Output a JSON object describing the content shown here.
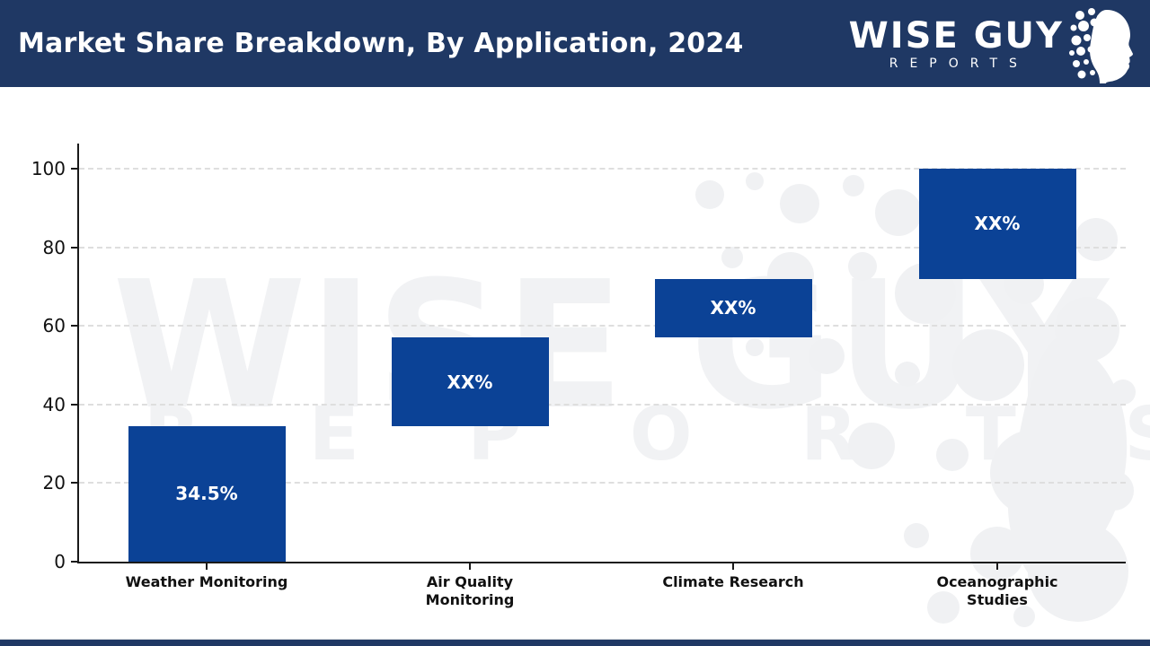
{
  "header": {
    "title": "Market Share Breakdown, By Application, 2024",
    "background_color": "#1f3864",
    "logo": {
      "line1": "WISE GUY",
      "line2": "REPORTS"
    }
  },
  "watermark": {
    "line1": "WISE GUY",
    "line2": "R E P O R T S"
  },
  "chart_data": {
    "type": "bar",
    "subtype": "floating-segment-breakdown",
    "title": "Market Share Breakdown, By Application, 2024",
    "xlabel": "",
    "ylabel": "",
    "ylim": [
      0,
      100
    ],
    "yticks": [
      0,
      20,
      40,
      60,
      80,
      100
    ],
    "grid": "horizontal-dashed",
    "legend": "none",
    "bar_color": "#0b4296",
    "value_label_color": "#ffffff",
    "categories": [
      "Weather Monitoring",
      "Air Quality Monitoring",
      "Climate Research",
      "Oceanographic Studies"
    ],
    "segments": [
      {
        "category_lines": [
          "Weather Monitoring"
        ],
        "from": 0,
        "to": 34.5,
        "value": 34.5,
        "label": "34.5%"
      },
      {
        "category_lines": [
          "Air Quality",
          "Monitoring"
        ],
        "from": 34.5,
        "to": 57,
        "value": 22.5,
        "label": "XX%"
      },
      {
        "category_lines": [
          "Climate Research"
        ],
        "from": 57,
        "to": 72,
        "value": 15,
        "label": "XX%"
      },
      {
        "category_lines": [
          "Oceanographic",
          "Studies"
        ],
        "from": 72,
        "to": 100,
        "value": 28,
        "label": "XX%"
      }
    ]
  }
}
